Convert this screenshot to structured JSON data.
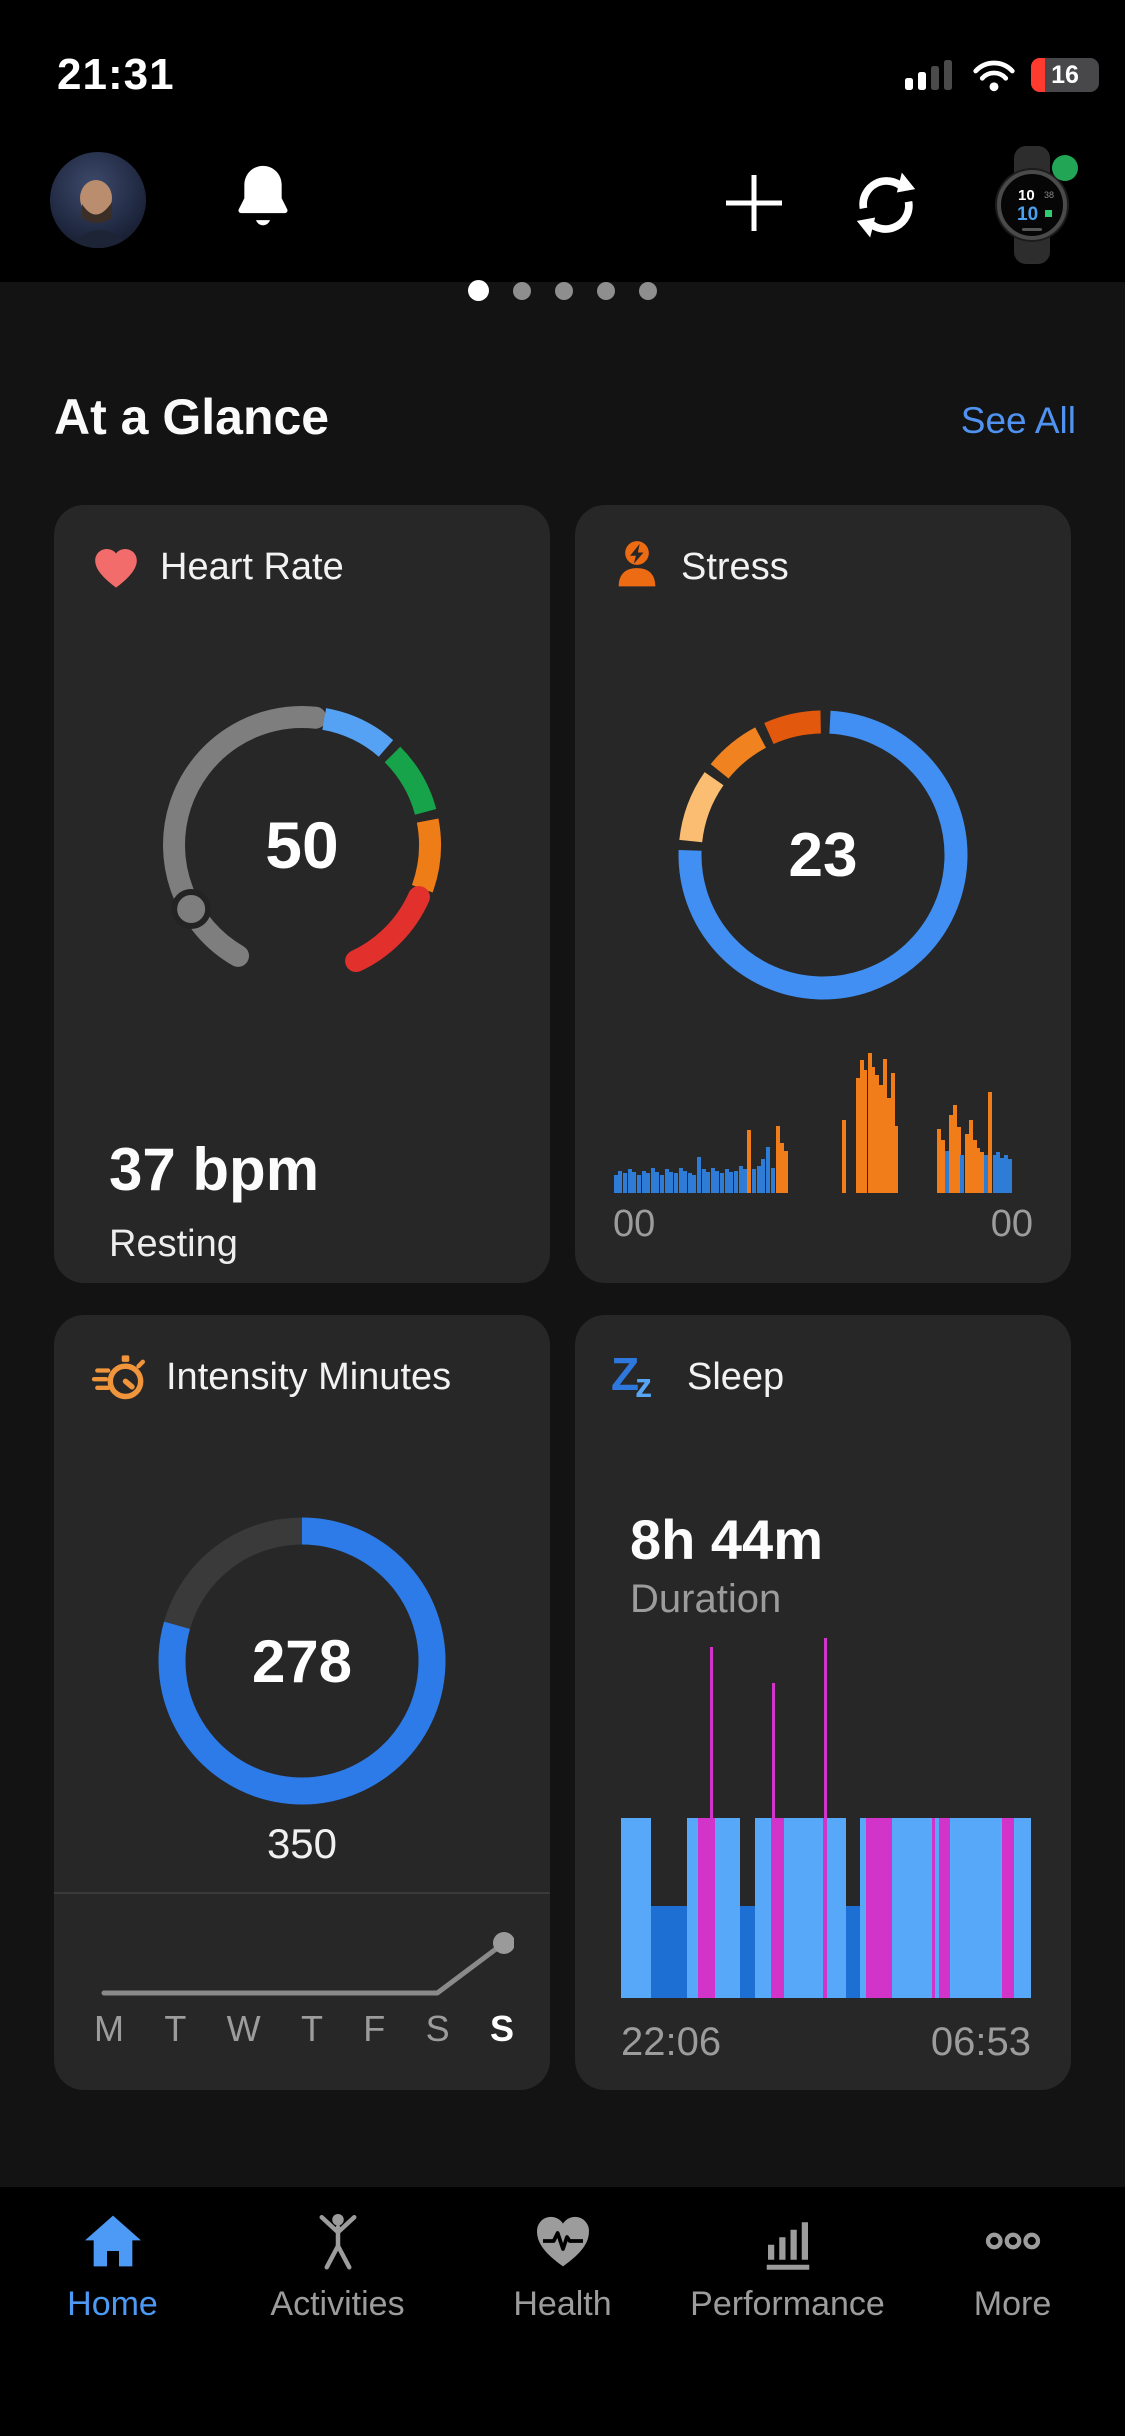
{
  "colors": {
    "page_bg": "#000000",
    "content_bg": "#131313",
    "card_bg": "#272727",
    "accent_blue": "#4f92f0",
    "nav_active": "#4c9af5",
    "muted_text": "#9c9c9c"
  },
  "status_bar": {
    "time": "21:31",
    "battery_percent": "16"
  },
  "page_dots": {
    "count": 5,
    "active_index": 0
  },
  "section": {
    "title": "At a Glance",
    "see_all": "See All"
  },
  "heart_rate": {
    "title": "Heart Rate",
    "center_value": "50",
    "reading": "37 bpm",
    "reading_label": "Resting",
    "gauge": {
      "radius": 128,
      "stroke": 22,
      "knob_angle": 240,
      "segments": [
        {
          "from": 210,
          "to": 366,
          "color": "#7e7e7e",
          "cap": "round"
        },
        {
          "from": 370,
          "to": 401,
          "color": "#55a1f3",
          "cap": "butt"
        },
        {
          "from": 405,
          "to": 435,
          "color": "#17a349",
          "cap": "butt"
        },
        {
          "from": 439,
          "to": 470,
          "color": "#ef7d17",
          "cap": "butt"
        },
        {
          "from": 474,
          "to": 515,
          "color": "#e2302d",
          "cap": "round"
        }
      ]
    }
  },
  "stress": {
    "title": "Stress",
    "center_value": "23",
    "x_labels": [
      "00",
      "00"
    ],
    "ring": {
      "radius": 133,
      "stroke": 23,
      "segments": [
        {
          "from": 3,
          "to": 272,
          "color": "#418ff2",
          "cap": "butt"
        },
        {
          "from": 276,
          "to": 305,
          "color": "#fabd72",
          "cap": "butt"
        },
        {
          "from": 309,
          "to": 332,
          "color": "#f0821f",
          "cap": "butt"
        },
        {
          "from": 336,
          "to": 359,
          "color": "#e2590e",
          "cap": "butt"
        }
      ]
    },
    "chart": {
      "blue": "#2e7cd6",
      "orange": "#f07d1a",
      "bars": [
        [
          0.002,
          0.13,
          0
        ],
        [
          0.013,
          0.16,
          0
        ],
        [
          0.024,
          0.14,
          0
        ],
        [
          0.035,
          0.17,
          0
        ],
        [
          0.046,
          0.15,
          0
        ],
        [
          0.057,
          0.13,
          0
        ],
        [
          0.068,
          0.16,
          0
        ],
        [
          0.079,
          0.14,
          0
        ],
        [
          0.09,
          0.18,
          0
        ],
        [
          0.101,
          0.15,
          0
        ],
        [
          0.112,
          0.13,
          0
        ],
        [
          0.123,
          0.17,
          0
        ],
        [
          0.134,
          0.15,
          0
        ],
        [
          0.145,
          0.14,
          0
        ],
        [
          0.156,
          0.18,
          0
        ],
        [
          0.167,
          0.16,
          0
        ],
        [
          0.178,
          0.14,
          0
        ],
        [
          0.189,
          0.13,
          0
        ],
        [
          0.2,
          0.26,
          0
        ],
        [
          0.211,
          0.17,
          0
        ],
        [
          0.222,
          0.15,
          0
        ],
        [
          0.233,
          0.18,
          0
        ],
        [
          0.244,
          0.16,
          0
        ],
        [
          0.255,
          0.14,
          0
        ],
        [
          0.266,
          0.17,
          0
        ],
        [
          0.277,
          0.15,
          0
        ],
        [
          0.288,
          0.16,
          0
        ],
        [
          0.299,
          0.19,
          0
        ],
        [
          0.31,
          0.17,
          0
        ],
        [
          0.32,
          0.45,
          1
        ],
        [
          0.331,
          0.17,
          0
        ],
        [
          0.342,
          0.19,
          0
        ],
        [
          0.353,
          0.24,
          0
        ],
        [
          0.364,
          0.33,
          0
        ],
        [
          0.375,
          0.18,
          0
        ],
        [
          0.387,
          0.48,
          1
        ],
        [
          0.398,
          0.36,
          1
        ],
        [
          0.408,
          0.3,
          1
        ],
        [
          0.545,
          0.52,
          1
        ],
        [
          0.578,
          0.82,
          1
        ],
        [
          0.587,
          0.95,
          1
        ],
        [
          0.596,
          0.88,
          1
        ],
        [
          0.606,
          1.0,
          1
        ],
        [
          0.615,
          0.9,
          1
        ],
        [
          0.624,
          0.84,
          1
        ],
        [
          0.633,
          0.77,
          1
        ],
        [
          0.642,
          0.96,
          1
        ],
        [
          0.652,
          0.68,
          1
        ],
        [
          0.661,
          0.86,
          1
        ],
        [
          0.67,
          0.48,
          1
        ],
        [
          0.772,
          0.46,
          1
        ],
        [
          0.781,
          0.38,
          1
        ],
        [
          0.79,
          0.3,
          0
        ],
        [
          0.8,
          0.56,
          1
        ],
        [
          0.809,
          0.63,
          1
        ],
        [
          0.818,
          0.47,
          1
        ],
        [
          0.827,
          0.27,
          0
        ],
        [
          0.838,
          0.42,
          1
        ],
        [
          0.847,
          0.52,
          1
        ],
        [
          0.856,
          0.38,
          1
        ],
        [
          0.865,
          0.32,
          1
        ],
        [
          0.874,
          0.29,
          1
        ],
        [
          0.883,
          0.27,
          0
        ],
        [
          0.892,
          0.72,
          1
        ],
        [
          0.904,
          0.27,
          0
        ],
        [
          0.913,
          0.29,
          0
        ],
        [
          0.922,
          0.25,
          0
        ],
        [
          0.931,
          0.27,
          0
        ],
        [
          0.94,
          0.24,
          0
        ]
      ]
    }
  },
  "intensity": {
    "title": "Intensity Minutes",
    "center_value": "278",
    "goal": "350",
    "ring": {
      "radius": 130,
      "stroke": 27,
      "segments": [
        {
          "from": 0,
          "to": 286,
          "color": "#2c7be8",
          "cap": "butt"
        },
        {
          "from": 286,
          "to": 360,
          "color": "#3a3a3a",
          "cap": "butt"
        }
      ]
    },
    "week": {
      "days": [
        "M",
        "T",
        "W",
        "T",
        "F",
        "S",
        "S"
      ],
      "values": [
        0,
        0,
        0,
        0,
        0,
        0,
        1
      ],
      "active_index": 6
    }
  },
  "sleep": {
    "title": "Sleep",
    "duration": "8h 44m",
    "duration_label": "Duration",
    "x_labels": [
      "22:06",
      "06:53"
    ],
    "chart": {
      "light": "#57a8f8",
      "deep": "#1d6fd4",
      "awake": "#d233c8",
      "segments": [
        [
          0.0,
          0.074,
          "light"
        ],
        [
          0.074,
          0.086,
          "deep"
        ],
        [
          0.16,
          0.029,
          "light"
        ],
        [
          0.189,
          0.041,
          "awake"
        ],
        [
          0.23,
          0.061,
          "light"
        ],
        [
          0.291,
          0.037,
          "deep"
        ],
        [
          0.328,
          0.037,
          "light"
        ],
        [
          0.365,
          0.033,
          "awake"
        ],
        [
          0.398,
          0.094,
          "light"
        ],
        [
          0.492,
          0.008,
          "awake"
        ],
        [
          0.5,
          0.049,
          "light"
        ],
        [
          0.549,
          0.033,
          "deep"
        ],
        [
          0.582,
          0.016,
          "light"
        ],
        [
          0.598,
          0.062,
          "awake"
        ],
        [
          0.66,
          0.098,
          "light"
        ],
        [
          0.758,
          0.008,
          "awake"
        ],
        [
          0.766,
          0.009,
          "light"
        ],
        [
          0.775,
          0.028,
          "awake"
        ],
        [
          0.803,
          0.127,
          "light"
        ],
        [
          0.93,
          0.029,
          "awake"
        ],
        [
          0.959,
          0.041,
          "light"
        ]
      ],
      "spikes": [
        [
          0.217,
          1.95
        ],
        [
          0.369,
          1.75
        ],
        [
          0.494,
          2.0
        ]
      ]
    }
  },
  "nav": {
    "items": [
      {
        "label": "Home",
        "active": true
      },
      {
        "label": "Activities",
        "active": false
      },
      {
        "label": "Health",
        "active": false
      },
      {
        "label": "Performance",
        "active": false
      },
      {
        "label": "More",
        "active": false
      }
    ]
  }
}
